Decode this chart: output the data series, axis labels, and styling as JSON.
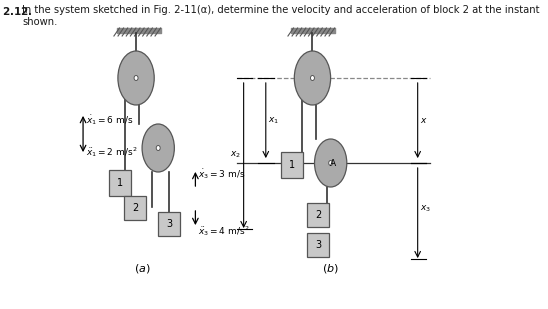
{
  "bg_color": "#ffffff",
  "text_color": "#1a1a1a",
  "pulley_color": "#aaaaaa",
  "block_color": "#c8c8c8",
  "block_edge_color": "#555555",
  "rope_color": "#333333",
  "hatch_color": "#555555",
  "dashed_color": "#888888",
  "label_x1_vel": "$\\dot{x}_1 = 6$ m/s",
  "label_x1_acc": "$\\ddot{x}_1 = 2$ m/s$^2$",
  "label_x3_vel": "$\\dot{x}_3 = 3$ m/s",
  "label_x3_acc": "$\\ddot{x}_3 = 4$ m/s$^2$"
}
